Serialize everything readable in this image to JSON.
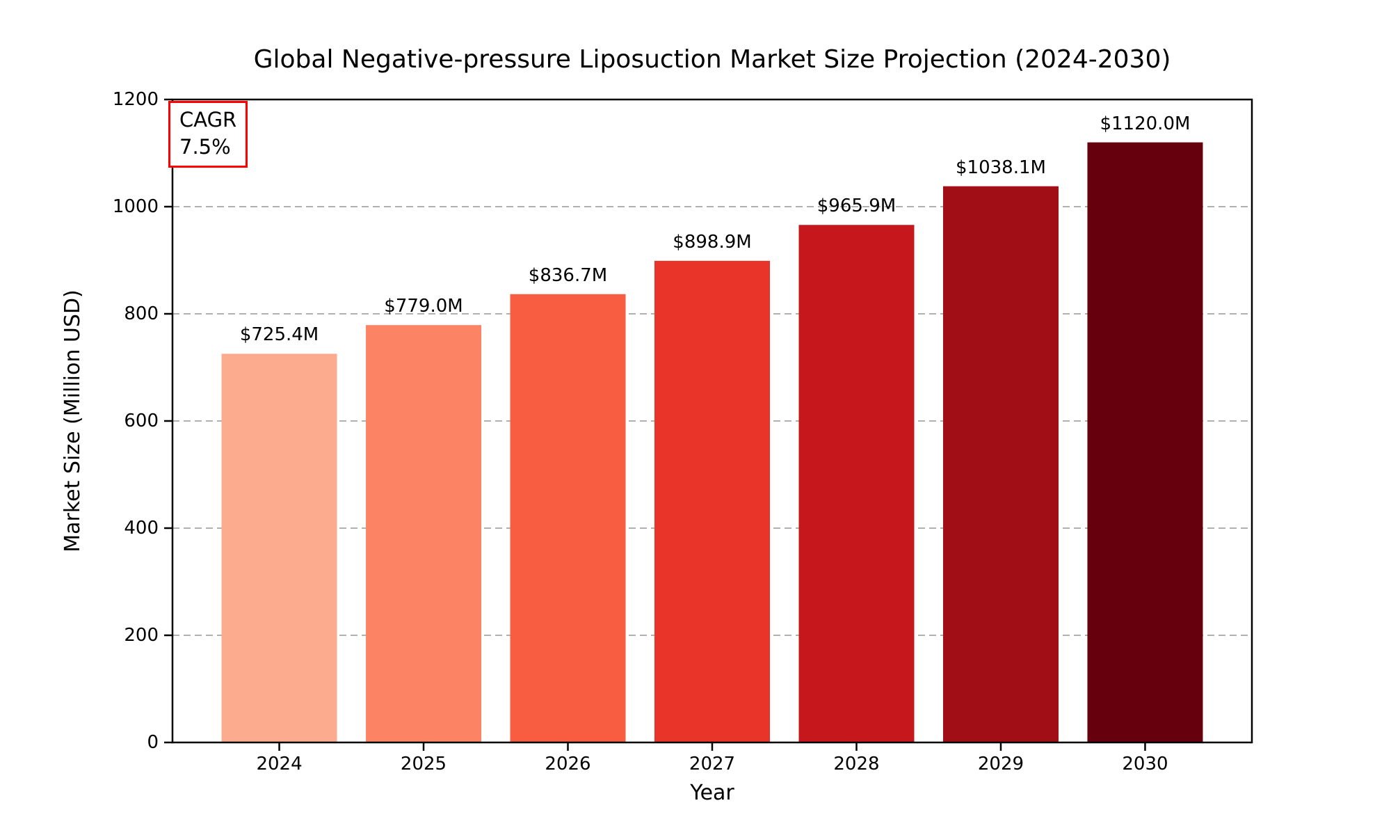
{
  "title": "Global Negative-pressure Liposuction Market Size Projection (2024-2030)",
  "annotation": {
    "line1": "CAGR",
    "line2": "7.5%",
    "border_color": "#ff0000",
    "text_color": "#000000"
  },
  "axes": {
    "xlabel": "Year",
    "ylabel": "Market Size (Million USD)"
  },
  "chart_data": {
    "type": "bar",
    "title": "Global Negative-pressure Liposuction Market Size Projection (2024-2030)",
    "xlabel": "Year",
    "ylabel": "Market Size (Million USD)",
    "categories": [
      "2024",
      "2025",
      "2026",
      "2027",
      "2028",
      "2029",
      "2030"
    ],
    "values": [
      725.4,
      779.0,
      836.7,
      898.9,
      965.9,
      1038.1,
      1120.0
    ],
    "bar_labels": [
      "$725.4M",
      "$779.0M",
      "$836.7M",
      "$898.9M",
      "$965.9M",
      "$1038.1M",
      "$1120.0M"
    ],
    "bar_colors": [
      "#fcab8e",
      "#fc8465",
      "#f85d42",
      "#e83429",
      "#c6171c",
      "#a10e15",
      "#67000d"
    ],
    "ylim": [
      0,
      1200
    ],
    "yticks": [
      0,
      200,
      400,
      600,
      800,
      1000,
      1200
    ],
    "grid": "horizontal dashed",
    "grid_color": "#b0b0b0",
    "frame_color": "#000000",
    "legend": "none",
    "annotation": "CAGR 7.5%"
  }
}
